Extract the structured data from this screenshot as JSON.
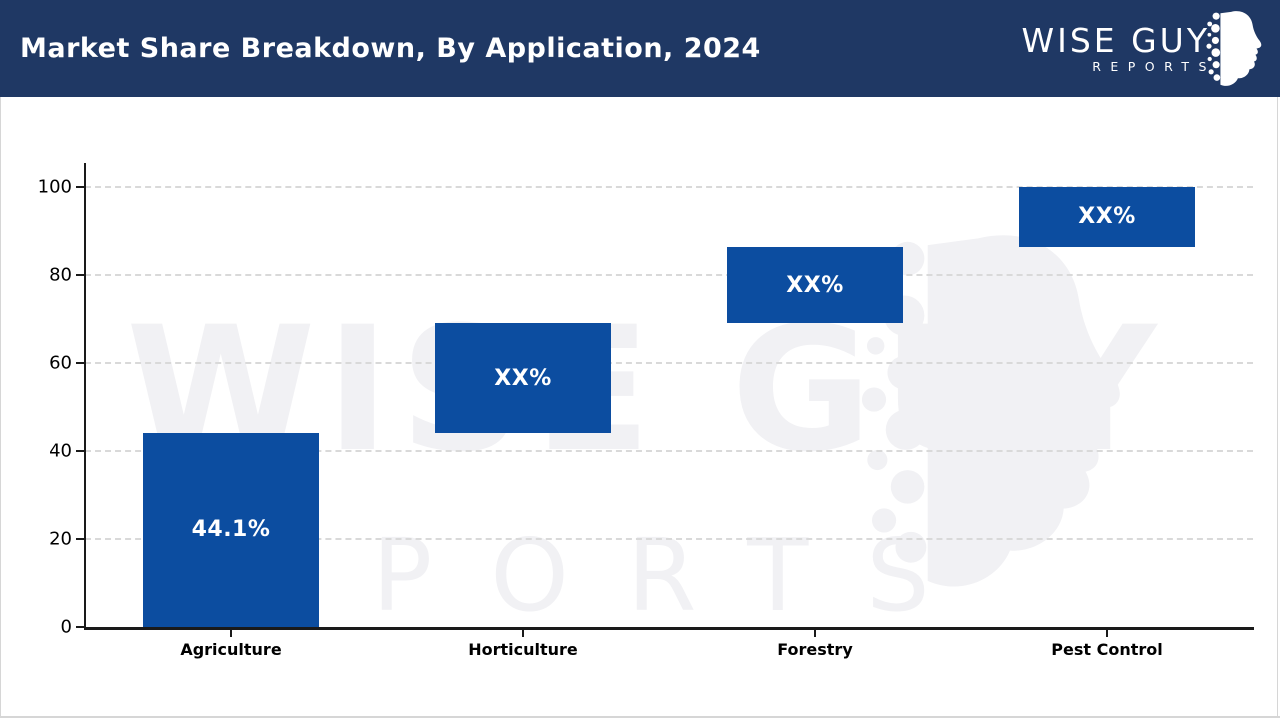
{
  "header": {
    "title": "Market Share Breakdown, By Application, 2024",
    "logo": {
      "line1": "WISE GUY",
      "line2": "REPORTS"
    }
  },
  "watermark": {
    "line1": "WISE GUY",
    "line2": "PORTS"
  },
  "colors": {
    "header_bg": "#1f3864",
    "bar_blue": "#0c4da0",
    "grid": "#d9d9d9",
    "axis": "#1a1a1a",
    "watermark": "#f1f1f4",
    "bar_label": "#ffffff"
  },
  "chart_data": {
    "type": "bar",
    "subtype": "waterfall",
    "title": "Market Share Breakdown, By Application, 2024",
    "categories": [
      "Agriculture",
      "Horticulture",
      "Forestry",
      "Pest Control"
    ],
    "bars": [
      {
        "category": "Agriculture",
        "start": 0,
        "end": 44.1,
        "label": "44.1%"
      },
      {
        "category": "Horticulture",
        "start": 44.1,
        "end": 69.0,
        "label": "XX%"
      },
      {
        "category": "Forestry",
        "start": 69.0,
        "end": 86.4,
        "label": "XX%"
      },
      {
        "category": "Pest Control",
        "start": 86.4,
        "end": 100.0,
        "label": "XX%"
      }
    ],
    "yticks": [
      0,
      20,
      40,
      60,
      80,
      100
    ],
    "ylim": [
      0,
      105
    ],
    "xlabel": "",
    "ylabel": "",
    "grid": "horizontal-dashed",
    "legend": "none"
  }
}
